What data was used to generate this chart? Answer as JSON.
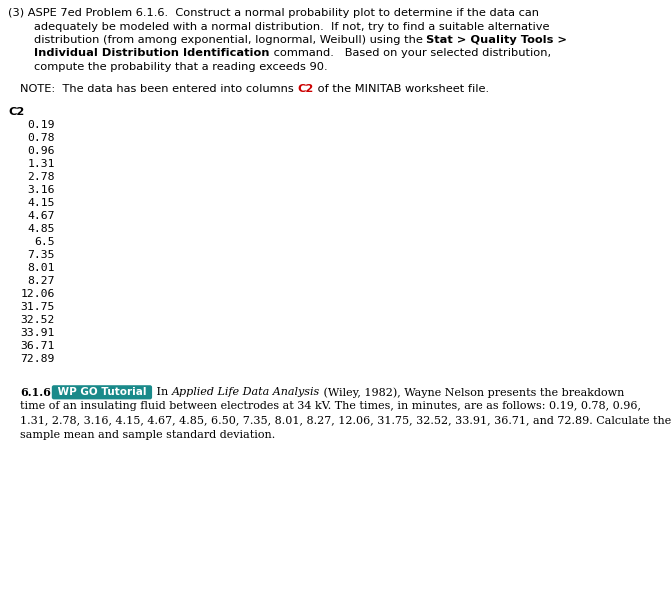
{
  "data_values": [
    "0.19",
    "0.78",
    "0.96",
    "1.31",
    "2.78",
    "3.16",
    "4.15",
    "4.67",
    "4.85",
    "6.5",
    "7.35",
    "8.01",
    "8.27",
    "12.06",
    "31.75",
    "32.52",
    "33.91",
    "36.71",
    "72.89"
  ],
  "footer_badge_color": "#1a8a8a",
  "bg_color": "#ffffff",
  "main_fontsize": 8.2,
  "footer_fontsize": 8.0,
  "data_fontsize": 8.2
}
